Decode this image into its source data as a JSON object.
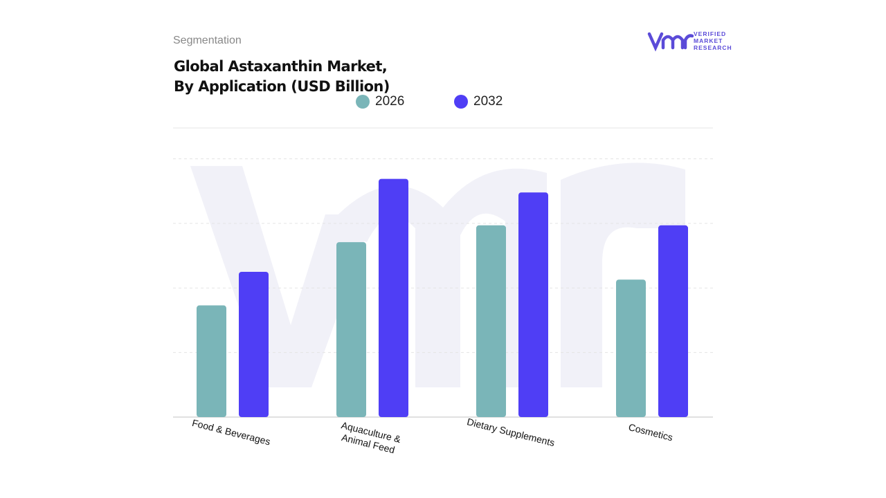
{
  "header": {
    "section": "Segmentation",
    "logo_line1": "VERIFIED",
    "logo_line2": "MARKET",
    "logo_line3": "RESEARCH"
  },
  "chart_data": {
    "type": "bar",
    "title": "Global Astaxanthin Market,\nBy Application (USD Billion)",
    "categories": [
      "Food & Beverages",
      "Aquaculture &\nAnimal Feed",
      "Dietary Supplements",
      "Cosmetics"
    ],
    "series": [
      {
        "name": "2026",
        "color": "#7ab5b8",
        "values": [
          1.73,
          2.71,
          2.97,
          2.13
        ]
      },
      {
        "name": "2032",
        "color": "#4f3ef5",
        "values": [
          2.25,
          3.69,
          3.48,
          2.97
        ]
      }
    ],
    "ylim": [
      0,
      4.5
    ],
    "yticks": [
      1,
      2,
      3,
      4
    ],
    "grid": true
  }
}
